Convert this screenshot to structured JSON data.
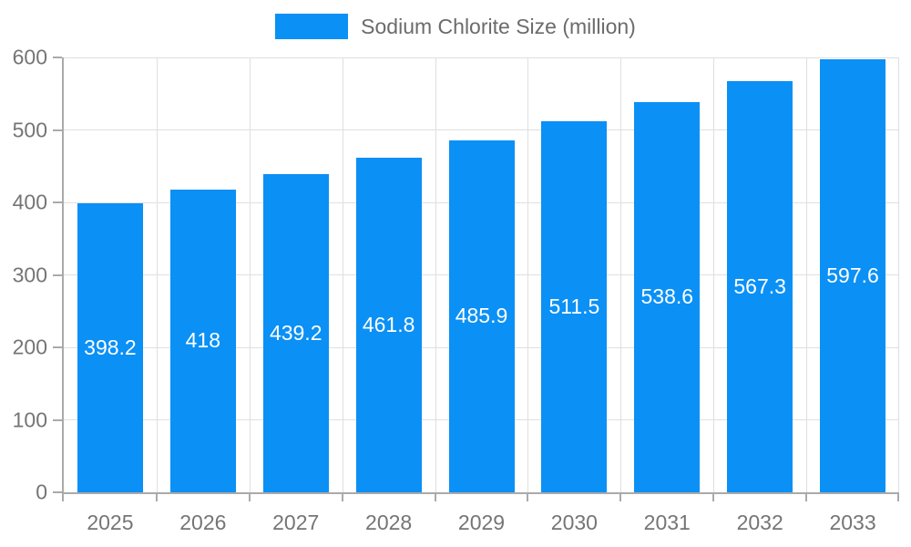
{
  "chart_data": {
    "type": "bar",
    "title": "Sodium Chlorite Size (million)",
    "categories": [
      "2025",
      "2026",
      "2027",
      "2028",
      "2029",
      "2030",
      "2031",
      "2032",
      "2033"
    ],
    "values": [
      398.2,
      418,
      439.2,
      461.8,
      485.9,
      511.5,
      538.6,
      567.3,
      597.6
    ],
    "value_labels": [
      "398.2",
      "418",
      "439.2",
      "461.8",
      "485.9",
      "511.5",
      "538.6",
      "567.3",
      "597.6"
    ],
    "xlabel": "",
    "ylabel": "",
    "ylim": [
      0,
      600
    ],
    "yticks": [
      0,
      100,
      200,
      300,
      400,
      500,
      600
    ],
    "grid": true,
    "legend_position": "top-center",
    "colors": {
      "bar": "#0B90F5",
      "value_label": "#FFFFFF",
      "axis_label": "#757575",
      "legend_text": "#6B6B6B",
      "axis_line": "#AAAAAA",
      "gridline": "#DFDFDF",
      "background": "#FFFFFF"
    }
  }
}
